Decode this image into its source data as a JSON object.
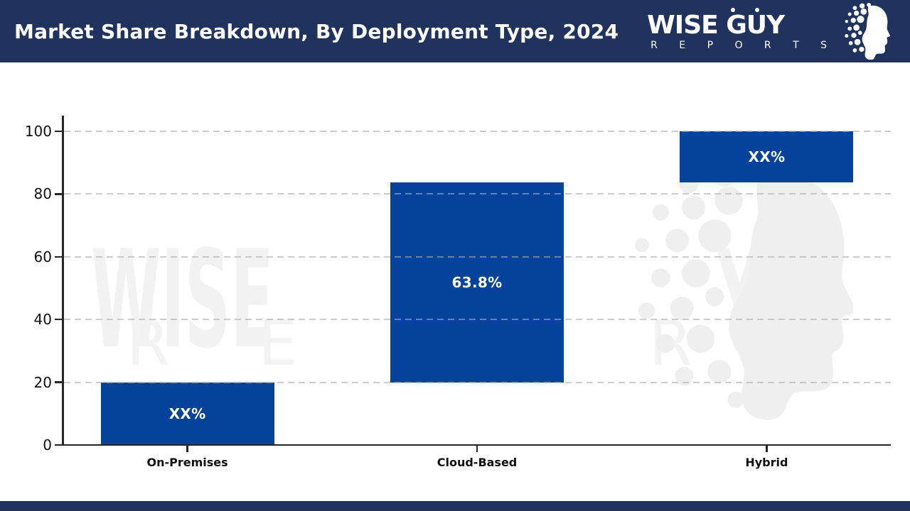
{
  "header": {
    "title": "Market Share Breakdown, By Deployment Type, 2024",
    "logo": {
      "line1": "WISE GUY",
      "line2": "R E P O R T S"
    }
  },
  "watermark": {
    "word_wise": "WISE",
    "word_g": "G",
    "word_y": "Y",
    "reports_row": "REPORTS"
  },
  "chart_data": {
    "type": "bar",
    "variant": "floating-segment-waterfall",
    "title": "Market Share Breakdown, By Deployment Type, 2024",
    "categories": [
      "On-Premises",
      "Cloud-Based",
      "Hybrid"
    ],
    "bars": [
      {
        "category": "On-Premises",
        "start": 0,
        "end": 20,
        "label": "XX%"
      },
      {
        "category": "Cloud-Based",
        "start": 20,
        "end": 83.8,
        "label": "63.8%"
      },
      {
        "category": "Hybrid",
        "start": 83.8,
        "end": 100,
        "label": "XX%"
      }
    ],
    "yticks": [
      0,
      20,
      40,
      60,
      80,
      100
    ],
    "ylim": [
      0,
      105
    ],
    "xlabel": "",
    "ylabel": "",
    "grid": "horizontal-dashed-above-bars",
    "legend": "none",
    "colors": {
      "bar": "#05429c",
      "grid": "#c9c9c9",
      "axis": "#262626",
      "bar_label_text": "#ffffff",
      "tick_text": "#111111",
      "header_bg": "#20335e",
      "footer_bg": "#20335e",
      "watermark": "#f2f2f2"
    }
  }
}
